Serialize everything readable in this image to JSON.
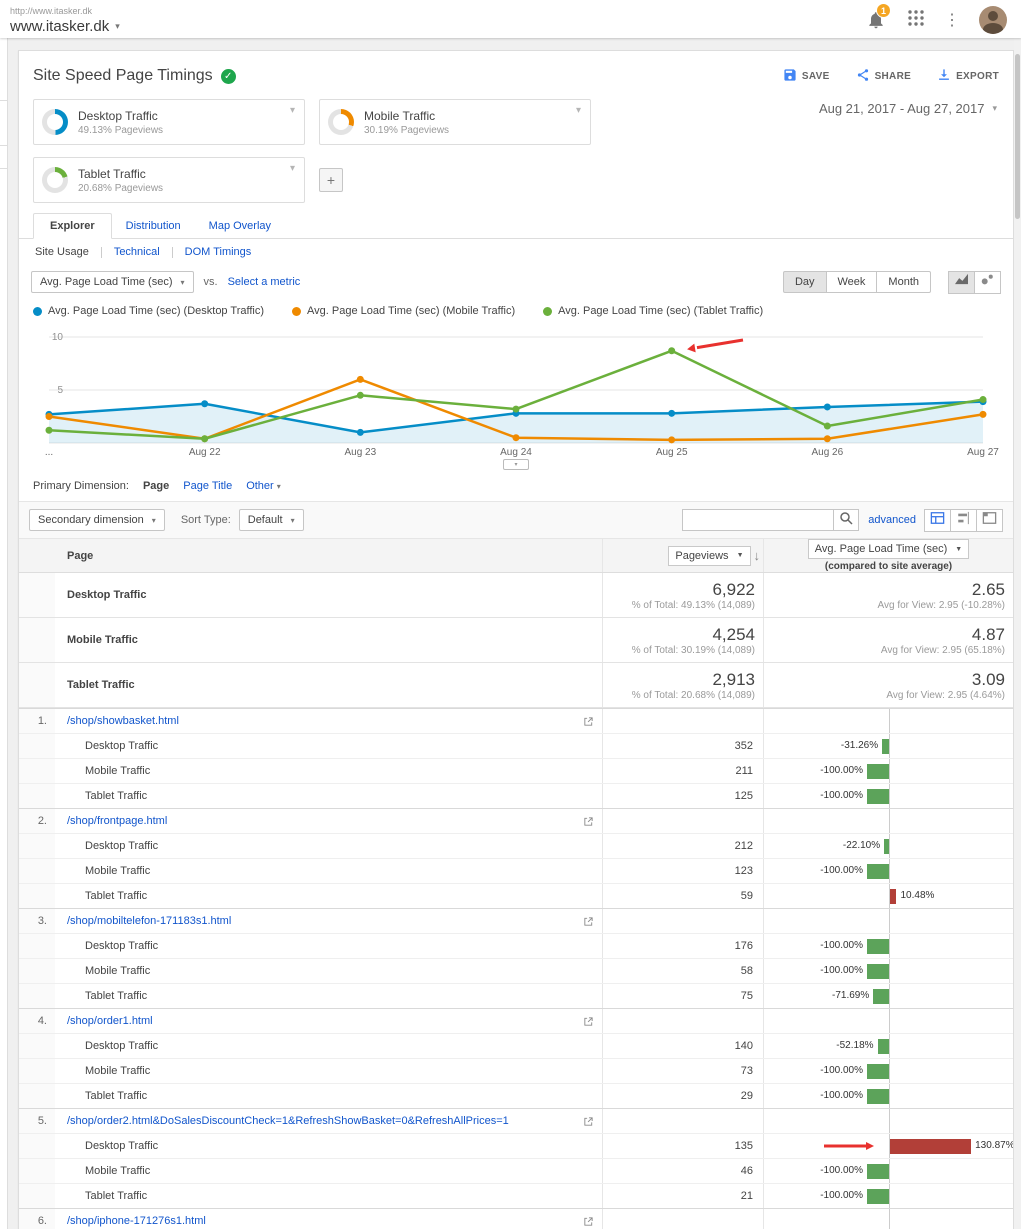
{
  "glyphs": {
    "chevron": "▾",
    "caret": "▼",
    "sort_desc": "↓",
    "plus": "+",
    "check": "✓",
    "kebab": "⋮"
  },
  "colors": {
    "accent_blue": "#4285f4",
    "link": "#1155cc",
    "negative_bar": "#5ca35a",
    "positive_bar": "#b23f38",
    "annotation_arrow": "#e8312e",
    "donut_rest": "#e3e3e3"
  },
  "topbar": {
    "url": "http://www.itasker.dk",
    "account": "www.itasker.dk",
    "notification_count": "1"
  },
  "header": {
    "title": "Site Speed Page Timings",
    "save": "SAVE",
    "share": "SHARE",
    "export": "EXPORT"
  },
  "segments": [
    {
      "name": "Desktop Traffic",
      "detail": "49.13% Pageviews",
      "pct": 49.13,
      "color": "#058dc7"
    },
    {
      "name": "Mobile Traffic",
      "detail": "30.19% Pageviews",
      "pct": 30.19,
      "color": "#ef8a00"
    },
    {
      "name": "Tablet Traffic",
      "detail": "20.68% Pageviews",
      "pct": 20.68,
      "color": "#6bb03c"
    }
  ],
  "date_range": "Aug 21, 2017 - Aug 27, 2017",
  "tabs": {
    "explorer": "Explorer",
    "distribution": "Distribution",
    "map_overlay": "Map Overlay"
  },
  "subtabs": {
    "site_usage": "Site Usage",
    "technical": "Technical",
    "dom_timings": "DOM Timings"
  },
  "metric_bar": {
    "metric": "Avg. Page Load Time (sec)",
    "vs": "vs.",
    "select_metric": "Select a metric",
    "day": "Day",
    "week": "Week",
    "month": "Month",
    "active_granularity": "Day"
  },
  "legend": [
    {
      "label": "Avg. Page Load Time (sec) (Desktop Traffic)",
      "color": "#058dc7"
    },
    {
      "label": "Avg. Page Load Time (sec) (Mobile Traffic)",
      "color": "#ef8a00"
    },
    {
      "label": "Avg. Page Load Time (sec) (Tablet Traffic)",
      "color": "#6bb03c"
    }
  ],
  "chart_data": {
    "type": "line",
    "x": [
      "Aug 21",
      "Aug 22",
      "Aug 23",
      "Aug 24",
      "Aug 25",
      "Aug 26",
      "Aug 27"
    ],
    "x_tick_labels": [
      "...",
      "Aug 22",
      "Aug 23",
      "Aug 24",
      "Aug 25",
      "Aug 26",
      "Aug 27"
    ],
    "ylim": [
      0,
      10
    ],
    "yticks": [
      5,
      10
    ],
    "grid": true,
    "legend_position": "top",
    "series": [
      {
        "name": "Avg. Page Load Time (sec) (Desktop Traffic)",
        "color": "#058dc7",
        "area": true,
        "values": [
          2.7,
          3.7,
          1.0,
          2.8,
          2.8,
          3.4,
          3.9
        ]
      },
      {
        "name": "Avg. Page Load Time (sec) (Mobile Traffic)",
        "color": "#ef8a00",
        "area": false,
        "values": [
          2.5,
          0.4,
          6.0,
          0.5,
          0.3,
          0.4,
          2.7
        ]
      },
      {
        "name": "Avg. Page Load Time (sec) (Tablet Traffic)",
        "color": "#6bb03c",
        "area": false,
        "values": [
          1.2,
          0.4,
          4.5,
          3.2,
          8.7,
          1.6,
          4.1
        ]
      }
    ],
    "annotations": [
      {
        "type": "red-arrow",
        "target": "Tablet Traffic peak on Aug 25"
      },
      {
        "type": "red-arrow",
        "target": "Desktop Traffic 130.87% bar in row 5"
      }
    ]
  },
  "primary_dimension": {
    "label": "Primary Dimension:",
    "page": "Page",
    "page_title": "Page Title",
    "other": "Other"
  },
  "toolbar": {
    "secondary_dimension": "Secondary dimension",
    "sort_type_label": "Sort Type:",
    "sort_type_value": "Default",
    "search_value": "",
    "advanced": "advanced"
  },
  "table": {
    "columns": {
      "page": "Page",
      "pageviews": "Pageviews",
      "load_time": "Avg. Page Load Time (sec)",
      "load_time_note": "(compared to site average)"
    },
    "summary": [
      {
        "name": "Desktop Traffic",
        "pageviews": "6,922",
        "pv_sub": "% of Total: 49.13% (14,089)",
        "load": "2.65",
        "load_sub": "Avg for View: 2.95 (-10.28%)"
      },
      {
        "name": "Mobile Traffic",
        "pageviews": "4,254",
        "pv_sub": "% of Total: 30.19% (14,089)",
        "load": "4.87",
        "load_sub": "Avg for View: 2.95 (65.18%)"
      },
      {
        "name": "Tablet Traffic",
        "pageviews": "2,913",
        "pv_sub": "% of Total: 20.68% (14,089)",
        "load": "3.09",
        "load_sub": "Avg for View: 2.95 (4.64%)"
      }
    ],
    "rows": [
      {
        "num": "1.",
        "page": "/shop/showbasket.html",
        "segments": [
          {
            "name": "Desktop Traffic",
            "pageviews": "352",
            "pct": -31.26,
            "pct_label": "-31.26%"
          },
          {
            "name": "Mobile Traffic",
            "pageviews": "211",
            "pct": -100.0,
            "pct_label": "-100.00%"
          },
          {
            "name": "Tablet Traffic",
            "pageviews": "125",
            "pct": -100.0,
            "pct_label": "-100.00%"
          }
        ]
      },
      {
        "num": "2.",
        "page": "/shop/frontpage.html",
        "segments": [
          {
            "name": "Desktop Traffic",
            "pageviews": "212",
            "pct": -22.1,
            "pct_label": "-22.10%"
          },
          {
            "name": "Mobile Traffic",
            "pageviews": "123",
            "pct": -100.0,
            "pct_label": "-100.00%"
          },
          {
            "name": "Tablet Traffic",
            "pageviews": "59",
            "pct": 10.48,
            "pct_label": "10.48%"
          }
        ]
      },
      {
        "num": "3.",
        "page": "/shop/mobiltelefon-171183s1.html",
        "segments": [
          {
            "name": "Desktop Traffic",
            "pageviews": "176",
            "pct": -100.0,
            "pct_label": "-100.00%"
          },
          {
            "name": "Mobile Traffic",
            "pageviews": "58",
            "pct": -100.0,
            "pct_label": "-100.00%"
          },
          {
            "name": "Tablet Traffic",
            "pageviews": "75",
            "pct": -71.69,
            "pct_label": "-71.69%"
          }
        ]
      },
      {
        "num": "4.",
        "page": "/shop/order1.html",
        "segments": [
          {
            "name": "Desktop Traffic",
            "pageviews": "140",
            "pct": -52.18,
            "pct_label": "-52.18%"
          },
          {
            "name": "Mobile Traffic",
            "pageviews": "73",
            "pct": -100.0,
            "pct_label": "-100.00%"
          },
          {
            "name": "Tablet Traffic",
            "pageviews": "29",
            "pct": -100.0,
            "pct_label": "-100.00%"
          }
        ]
      },
      {
        "num": "5.",
        "page": "/shop/order2.html&DoSalesDiscountCheck=1&RefreshShowBasket=0&RefreshAllPrices=1",
        "segments": [
          {
            "name": "Desktop Traffic",
            "pageviews": "135",
            "pct": 130.87,
            "pct_label": "130.87%",
            "arrow": true
          },
          {
            "name": "Mobile Traffic",
            "pageviews": "46",
            "pct": -100.0,
            "pct_label": "-100.00%"
          },
          {
            "name": "Tablet Traffic",
            "pageviews": "21",
            "pct": -100.0,
            "pct_label": "-100.00%"
          }
        ]
      },
      {
        "num": "6.",
        "page": "/shop/iphone-171276s1.html",
        "segments": []
      }
    ]
  }
}
